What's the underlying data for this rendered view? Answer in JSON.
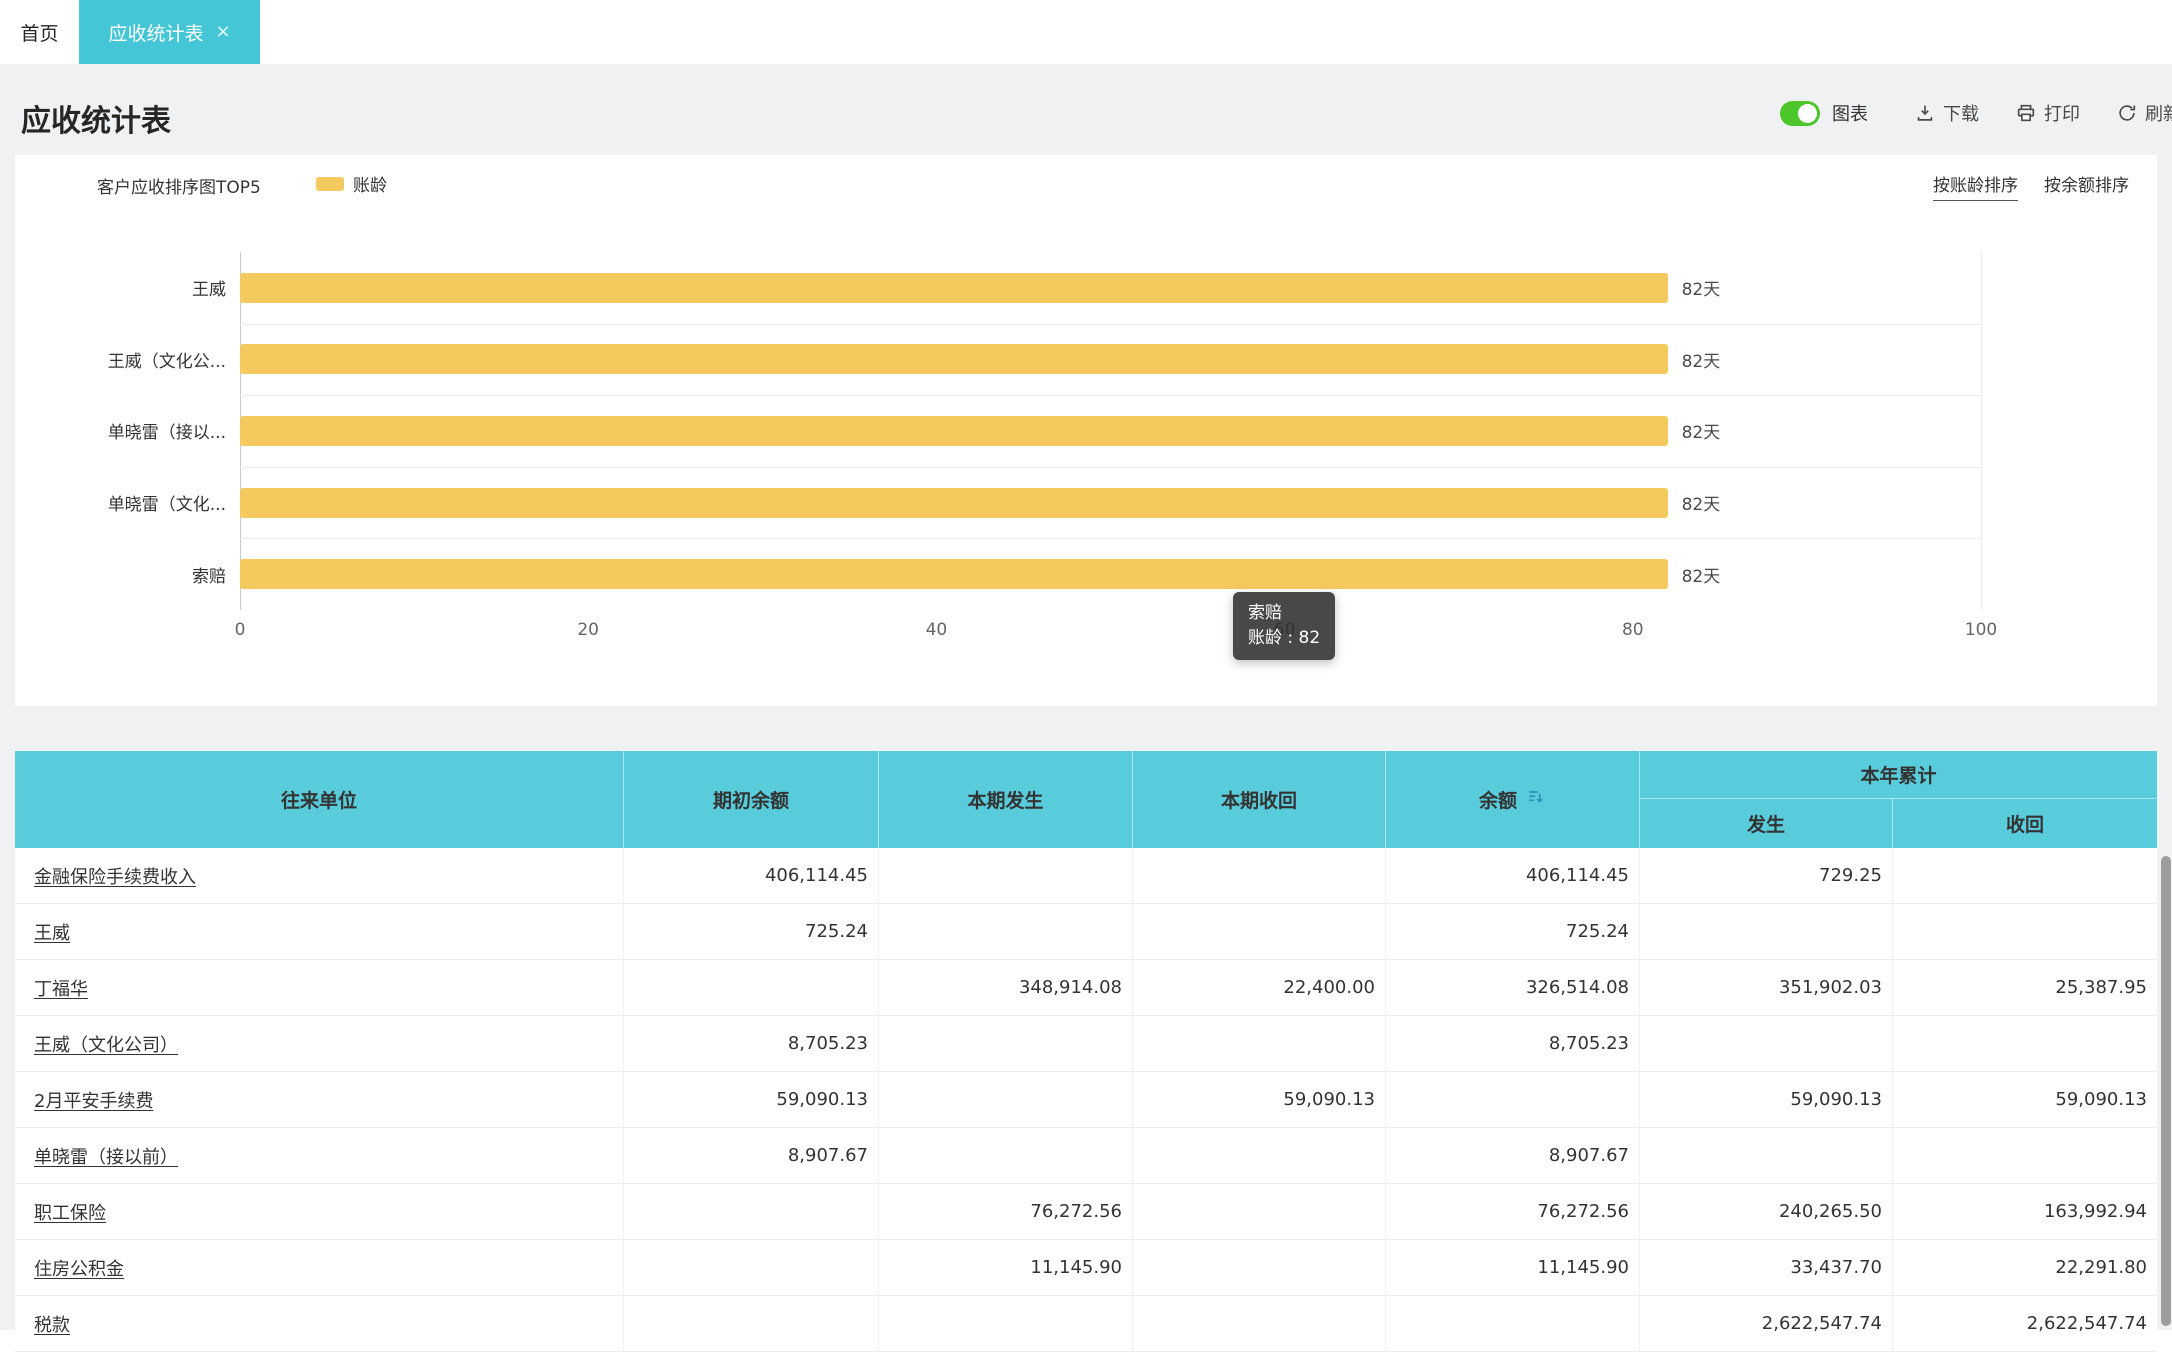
{
  "colors": {
    "accent_teal": "#45c6d6",
    "table_header_teal": "#58ccdb",
    "bar_yellow": "#f4ca5f",
    "toggle_green": "#4cc62b",
    "tooltip_bg": "#2a2a2a"
  },
  "tabs": {
    "home": "首页",
    "current": "应收统计表",
    "close": "×"
  },
  "header": {
    "title": "应收统计表",
    "chart_toggle_label": "图表",
    "download_label": "下载",
    "print_label": "打印",
    "refresh_label": "刷新"
  },
  "chart_panel": {
    "title": "客户应收排序图TOP5",
    "legend_label": "账龄",
    "sort_age_label": "按账龄排序",
    "sort_balance_label": "按余额排序",
    "tooltip": {
      "name": "索赔",
      "detail": "账龄 : 82"
    }
  },
  "chart_data": {
    "type": "bar",
    "orientation": "horizontal",
    "title": "客户应收排序图TOP5",
    "categories": [
      "王威",
      "王威（文化公...",
      "单晓雷（接以...",
      "单晓雷（文化...",
      "索赔"
    ],
    "series": [
      {
        "name": "账龄",
        "values": [
          82,
          82,
          82,
          82,
          82
        ]
      }
    ],
    "value_labels": [
      "82天",
      "82天",
      "82天",
      "82天",
      "82天"
    ],
    "unit": "天",
    "xlim": [
      0,
      100
    ],
    "xticks": [
      0,
      20,
      40,
      60,
      80,
      100
    ],
    "legend_position": "top-left",
    "grid": "horizontal-split-lines",
    "bar_color": "#f4ca5f"
  },
  "table": {
    "columns": [
      "往来单位",
      "期初余额",
      "本期发生",
      "本期收回",
      "余额",
      "发生",
      "收回"
    ],
    "group_header": "本年累计",
    "rows": [
      {
        "name": "金融保险手续费收入",
        "cells": [
          "406,114.45",
          "",
          "",
          "406,114.45",
          "729.25",
          ""
        ]
      },
      {
        "name": "王威",
        "cells": [
          "725.24",
          "",
          "",
          "725.24",
          "",
          ""
        ]
      },
      {
        "name": "丁福华",
        "cells": [
          "",
          "348,914.08",
          "22,400.00",
          "326,514.08",
          "351,902.03",
          "25,387.95"
        ]
      },
      {
        "name": "王威（文化公司）",
        "cells": [
          "8,705.23",
          "",
          "",
          "8,705.23",
          "",
          ""
        ]
      },
      {
        "name": "2月平安手续费",
        "cells": [
          "59,090.13",
          "",
          "59,090.13",
          "",
          "59,090.13",
          "59,090.13"
        ]
      },
      {
        "name": "单晓雷（接以前）",
        "cells": [
          "8,907.67",
          "",
          "",
          "8,907.67",
          "",
          ""
        ]
      },
      {
        "name": "职工保险",
        "cells": [
          "",
          "76,272.56",
          "",
          "76,272.56",
          "240,265.50",
          "163,992.94"
        ]
      },
      {
        "name": "住房公积金",
        "cells": [
          "",
          "11,145.90",
          "",
          "11,145.90",
          "33,437.70",
          "22,291.80"
        ]
      },
      {
        "name": "税款",
        "cells": [
          "",
          "",
          "",
          "",
          "2,622,547.74",
          "2,622,547.74"
        ]
      }
    ]
  }
}
